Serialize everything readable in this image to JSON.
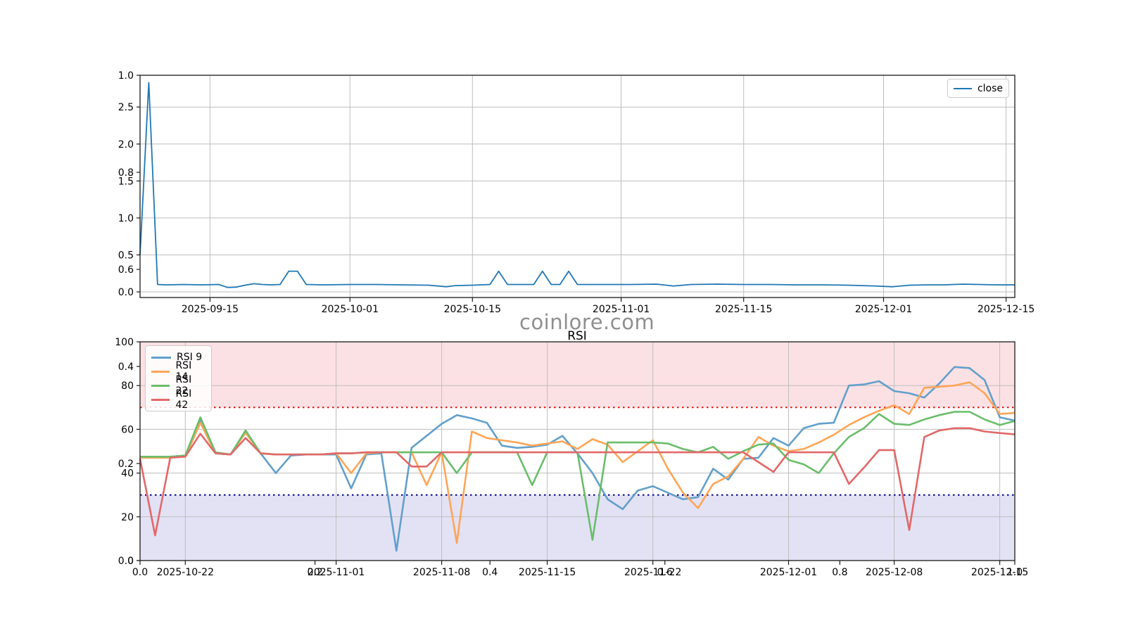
{
  "watermark": "coinlore.com",
  "price_chart": {
    "legend_label": "close",
    "y_tick_labels": [
      "0.0",
      "0.5",
      "1.0",
      "1.5",
      "2.0",
      "2.5"
    ],
    "x_tick_labels": [
      "2025-09-15",
      "2025-10-01",
      "2025-10-15",
      "2025-11-01",
      "2025-11-15",
      "2025-12-01",
      "2025-12-15"
    ]
  },
  "rsi_chart": {
    "title": "RSI",
    "y_tick_labels": [
      "0",
      "20",
      "40",
      "60",
      "80",
      "100"
    ],
    "x_tick_labels": [
      "2025-10-22",
      "2025-11-01",
      "2025-11-08",
      "2025-11-15",
      "2025-11-22",
      "2025-12-01",
      "2025-12-08",
      "2025-12-15"
    ]
  },
  "ghost_axis": {
    "y_labels": [
      "1.0",
      "0.8",
      "0.6",
      "0.4",
      "0.2",
      "0.0"
    ],
    "x_labels": [
      "0.0",
      "0.2",
      "0.4",
      "0.6",
      "0.8",
      "1.0"
    ]
  },
  "colors": {
    "close": "#1f77b4",
    "rsi9": "#62a0ca",
    "rsi14": "#ffa556",
    "rsi22": "#6bbd6b",
    "rsi42": "#e26869",
    "overbought_band": "#fce1e4",
    "oversold_band": "#e3e2f5",
    "overbought_line": "#e01010",
    "oversold_line": "#00008b",
    "grid": "#bdbdbd",
    "spine": "#1a1a1a"
  },
  "chart_data": [
    {
      "type": "line",
      "title": "",
      "panel": "price",
      "x_domain": [
        "2025-09-07",
        "2025-12-16"
      ],
      "x_ticks": [
        "2025-09-15",
        "2025-10-01",
        "2025-10-15",
        "2025-11-01",
        "2025-11-15",
        "2025-12-01",
        "2025-12-15"
      ],
      "y_ticks": [
        0.0,
        0.5,
        1.0,
        1.5,
        2.0,
        2.5
      ],
      "ylim": [
        -0.076,
        2.93
      ],
      "grid": true,
      "legend_position": "upper right",
      "series": [
        {
          "name": "close",
          "color_key": "close",
          "points": [
            [
              "2025-09-07",
              0.5
            ],
            [
              "2025-09-08",
              2.83
            ],
            [
              "2025-09-09",
              0.1
            ],
            [
              "2025-09-10",
              0.095
            ],
            [
              "2025-09-12",
              0.1
            ],
            [
              "2025-09-14",
              0.095
            ],
            [
              "2025-09-16",
              0.1
            ],
            [
              "2025-09-17",
              0.06
            ],
            [
              "2025-09-18",
              0.065
            ],
            [
              "2025-09-19",
              0.09
            ],
            [
              "2025-09-20",
              0.11
            ],
            [
              "2025-09-21",
              0.1
            ],
            [
              "2025-09-22",
              0.095
            ],
            [
              "2025-09-23",
              0.1
            ],
            [
              "2025-09-24",
              0.28
            ],
            [
              "2025-09-25",
              0.28
            ],
            [
              "2025-09-26",
              0.1
            ],
            [
              "2025-09-28",
              0.095
            ],
            [
              "2025-10-01",
              0.1
            ],
            [
              "2025-10-04",
              0.1
            ],
            [
              "2025-10-07",
              0.095
            ],
            [
              "2025-10-10",
              0.09
            ],
            [
              "2025-10-12",
              0.07
            ],
            [
              "2025-10-13",
              0.085
            ],
            [
              "2025-10-15",
              0.09
            ],
            [
              "2025-10-17",
              0.1
            ],
            [
              "2025-10-18",
              0.28
            ],
            [
              "2025-10-19",
              0.1
            ],
            [
              "2025-10-22",
              0.1
            ],
            [
              "2025-10-23",
              0.28
            ],
            [
              "2025-10-24",
              0.1
            ],
            [
              "2025-10-25",
              0.1
            ],
            [
              "2025-10-26",
              0.28
            ],
            [
              "2025-10-27",
              0.1
            ],
            [
              "2025-10-30",
              0.1
            ],
            [
              "2025-11-02",
              0.1
            ],
            [
              "2025-11-05",
              0.105
            ],
            [
              "2025-11-07",
              0.08
            ],
            [
              "2025-11-09",
              0.1
            ],
            [
              "2025-11-12",
              0.105
            ],
            [
              "2025-11-15",
              0.1
            ],
            [
              "2025-11-18",
              0.1
            ],
            [
              "2025-11-21",
              0.095
            ],
            [
              "2025-11-24",
              0.095
            ],
            [
              "2025-11-27",
              0.09
            ],
            [
              "2025-11-30",
              0.08
            ],
            [
              "2025-12-02",
              0.07
            ],
            [
              "2025-12-04",
              0.09
            ],
            [
              "2025-12-06",
              0.095
            ],
            [
              "2025-12-08",
              0.095
            ],
            [
              "2025-12-10",
              0.105
            ],
            [
              "2025-12-12",
              0.1
            ],
            [
              "2025-12-14",
              0.095
            ],
            [
              "2025-12-16",
              0.095
            ]
          ]
        }
      ]
    },
    {
      "type": "line",
      "title": "RSI",
      "panel": "rsi",
      "x_domain": [
        "2025-10-19",
        "2025-12-16"
      ],
      "x_ticks": [
        "2025-10-22",
        "2025-11-01",
        "2025-11-08",
        "2025-11-15",
        "2025-11-22",
        "2025-12-01",
        "2025-12-08",
        "2025-12-15"
      ],
      "y_ticks": [
        0,
        20,
        40,
        60,
        80,
        100
      ],
      "ylim": [
        0,
        100
      ],
      "grid": true,
      "legend_position": "upper left",
      "overbought_level": 70,
      "oversold_level": 30,
      "dates": [
        "2025-10-19",
        "2025-10-20",
        "2025-10-21",
        "2025-10-22",
        "2025-10-23",
        "2025-10-24",
        "2025-10-25",
        "2025-10-26",
        "2025-10-27",
        "2025-10-28",
        "2025-10-29",
        "2025-10-30",
        "2025-10-31",
        "2025-11-01",
        "2025-11-02",
        "2025-11-03",
        "2025-11-04",
        "2025-11-05",
        "2025-11-06",
        "2025-11-07",
        "2025-11-08",
        "2025-11-09",
        "2025-11-10",
        "2025-11-11",
        "2025-11-12",
        "2025-11-13",
        "2025-11-14",
        "2025-11-15",
        "2025-11-16",
        "2025-11-17",
        "2025-11-18",
        "2025-11-19",
        "2025-11-20",
        "2025-11-21",
        "2025-11-22",
        "2025-11-23",
        "2025-11-24",
        "2025-11-25",
        "2025-11-26",
        "2025-11-27",
        "2025-11-28",
        "2025-11-29",
        "2025-11-30",
        "2025-12-01",
        "2025-12-02",
        "2025-12-03",
        "2025-12-04",
        "2025-12-05",
        "2025-12-06",
        "2025-12-07",
        "2025-12-08",
        "2025-12-09",
        "2025-12-10",
        "2025-12-11",
        "2025-12-12",
        "2025-12-13",
        "2025-12-14",
        "2025-12-15",
        "2025-12-16"
      ],
      "series": [
        {
          "name": "RSI 9",
          "color_key": "rsi9",
          "values": [
            47.5,
            47.5,
            47.5,
            48,
            64,
            49,
            48.5,
            59,
            49,
            40,
            48,
            48.5,
            48.5,
            48.5,
            33,
            48.5,
            49,
            4.5,
            51.5,
            57,
            62.5,
            66.5,
            65,
            63,
            52.5,
            51.5,
            52,
            53,
            57,
            49,
            40,
            28,
            23.5,
            32,
            34,
            31,
            28,
            29,
            42,
            37,
            46.5,
            47,
            56,
            52.5,
            60.5,
            62.5,
            63,
            80,
            80.5,
            82,
            77.5,
            76.5,
            74.5,
            81,
            88.5,
            88,
            82.5,
            65.5,
            64
          ]
        },
        {
          "name": "RSI 14",
          "color_key": "rsi14",
          "values": [
            47,
            47,
            47,
            47.5,
            63,
            49,
            48.5,
            58.5,
            49,
            48.5,
            48.5,
            48.5,
            48.5,
            49,
            40,
            49,
            49.5,
            49.5,
            49.5,
            34.5,
            49.5,
            8,
            59,
            56,
            55,
            54,
            52.5,
            53.5,
            54.5,
            51,
            55.5,
            53,
            45,
            50,
            55,
            42,
            31,
            24,
            35,
            38.5,
            46.5,
            56.5,
            52.5,
            50,
            51,
            54,
            57.5,
            62,
            65.5,
            68.5,
            71,
            67,
            79,
            79.5,
            80,
            81.5,
            76.5,
            67,
            67.5
          ]
        },
        {
          "name": "RSI 22",
          "color_key": "rsi22",
          "values": [
            47.5,
            47.5,
            47.5,
            48,
            65.5,
            49.5,
            48.5,
            59.5,
            49,
            48.5,
            48.5,
            48.5,
            48.5,
            49,
            49,
            49.5,
            49.5,
            49.5,
            49.5,
            49.5,
            49.5,
            40,
            49.5,
            49.5,
            49.5,
            49.5,
            34.5,
            49.5,
            49.5,
            49.5,
            9.5,
            54,
            54,
            54,
            54,
            53.5,
            51,
            49.5,
            52,
            46.5,
            50,
            53,
            53.5,
            46,
            44,
            40,
            49,
            56.5,
            60.5,
            67,
            62.5,
            62,
            64.5,
            66.5,
            68,
            68,
            64.5,
            62,
            63.8
          ]
        },
        {
          "name": "RSI 42",
          "color_key": "rsi42",
          "values": [
            46.5,
            11.5,
            47,
            47.5,
            58,
            49,
            48.5,
            56,
            49,
            48.5,
            48.5,
            48.5,
            48.5,
            49,
            49,
            49.5,
            49.5,
            49.5,
            43,
            43,
            49.5,
            49.5,
            49.5,
            49.5,
            49.5,
            49.5,
            49.5,
            49.5,
            49.5,
            49.5,
            49.5,
            49.5,
            49.5,
            49.5,
            49.5,
            49.5,
            49.5,
            49.5,
            49.5,
            49.5,
            49.5,
            45,
            40.5,
            49.5,
            49.5,
            49.5,
            49.5,
            35,
            42.5,
            50.5,
            50.5,
            14,
            56.5,
            59.5,
            60.5,
            60.5,
            59,
            58.3,
            57.7
          ]
        }
      ]
    }
  ]
}
